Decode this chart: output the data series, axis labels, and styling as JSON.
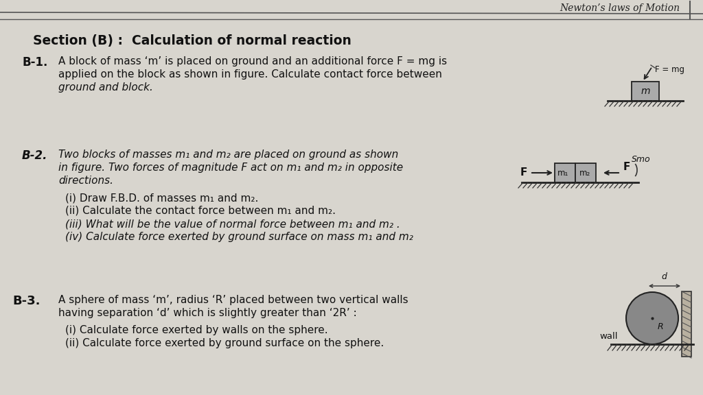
{
  "bg_color": "#d8d5ce",
  "page_color": "#e8e6e0",
  "header_text": "Newton’s laws of Motion",
  "section_title": "Section (B) :  Calculation of normal reaction",
  "b1_label": "B-1.",
  "b1_text_line1": "A block of mass ‘m’ is placed on ground and an additional force F = mg is",
  "b1_text_line2": "applied on the block as shown in figure. Calculate contact force between",
  "b1_text_line3": "ground and block.",
  "b2_label": "B-2.",
  "b2_text_line1": "Two blocks of masses m₁ and m₂ are placed on ground as shown",
  "b2_text_line2": "in figure. Two forces of magnitude F act on m₁ and m₂ in opposite",
  "b2_text_line3": "directions.",
  "b2_i": "(i) Draw F.B.D. of masses m₁ and m₂.",
  "b2_ii": "(ii) Calculate the contact force between m₁ and m₂.",
  "b2_iii": "(iii) What will be the value of normal force between m₁ and m₂ .",
  "b2_iv": "(iv) Calculate force exerted by ground surface on mass m₁ and m₂",
  "b3_label": "B-3.",
  "b3_text_line1": "A sphere of mass ‘m’, radius ‘R’ placed between two vertical walls",
  "b3_text_line2": "having separation ‘d’ which is slightly greater than ‘2R’ :",
  "b3_i": "(i) Calculate force exerted by walls on the sphere.",
  "b3_ii": "(ii) Calculate force exerted by ground surface on the sphere.",
  "smooth_label": "Smo",
  "wall_label": "wall"
}
